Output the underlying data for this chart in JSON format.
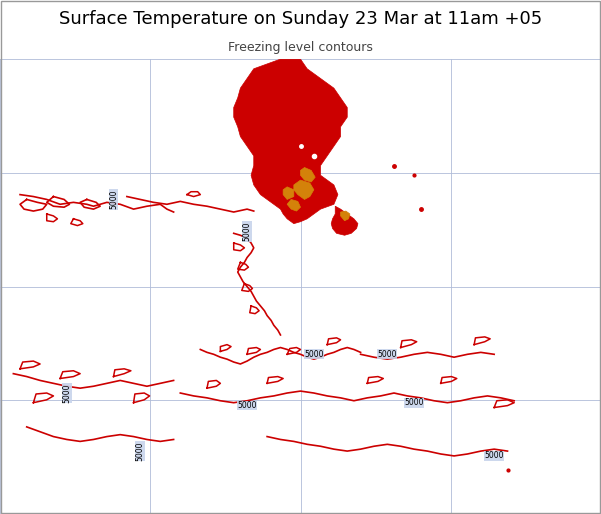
{
  "title": "Surface Temperature on Sunday 23 Mar at 11am +05",
  "subtitle": "Freezing level contours",
  "title_fontsize": 13,
  "subtitle_fontsize": 9,
  "ocean_color": "#c8d4ec",
  "land_red": "#cc0000",
  "land_orange": "#d4820a",
  "contour_color": "#cc0000",
  "grid_color": "#b0bcd8",
  "header_bg": "#ffffff",
  "border_color": "#999999",
  "fig_width": 6.01,
  "fig_height": 5.14,
  "lon_min": 55.0,
  "lon_max": 100.0,
  "lat_min": -22.0,
  "lat_max": 25.0
}
